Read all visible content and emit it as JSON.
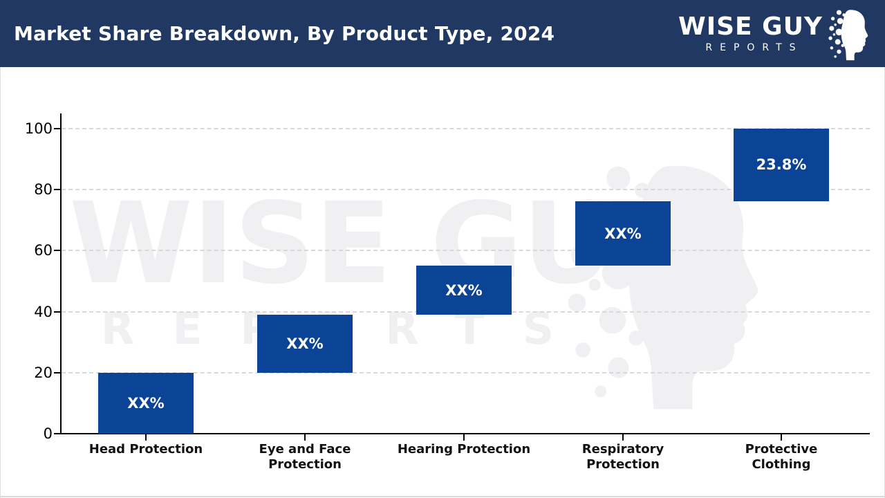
{
  "header": {
    "title": "Market Share Breakdown, By Product Type, 2024",
    "bg_color": "#213863",
    "logo": {
      "line1": "WISE GUY",
      "line2": "REPORTS"
    }
  },
  "watermark": {
    "line1": "WISE GUY",
    "line2": "REPORTS"
  },
  "chart_data": {
    "type": "bar",
    "subtype": "waterfall",
    "title": "Market Share Breakdown, By Product Type, 2024",
    "categories": [
      "Head Protection",
      "Eye and Face\nProtection",
      "Hearing Protection",
      "Respiratory\nProtection",
      "Protective\nClothing"
    ],
    "segments": [
      {
        "category": "Head Protection",
        "start": 0,
        "end": 20,
        "label": "XX%"
      },
      {
        "category": "Eye and Face Protection",
        "start": 20,
        "end": 39,
        "label": "XX%"
      },
      {
        "category": "Hearing Protection",
        "start": 39,
        "end": 55,
        "label": "XX%"
      },
      {
        "category": "Respiratory Protection",
        "start": 55,
        "end": 76.2,
        "label": "XX%"
      },
      {
        "category": "Protective Clothing",
        "start": 76.2,
        "end": 100,
        "label": "23.8%"
      }
    ],
    "xlabel": "",
    "ylabel": "",
    "yticks": [
      0,
      20,
      40,
      60,
      80,
      100
    ],
    "ylim": [
      0,
      105
    ],
    "grid": "horizontal-dashed",
    "legend": "none",
    "bar_color": "#0b4396",
    "bar_label_color": "#ffffff",
    "grid_color": "#d8d8d8",
    "axis_color": "#000000"
  }
}
